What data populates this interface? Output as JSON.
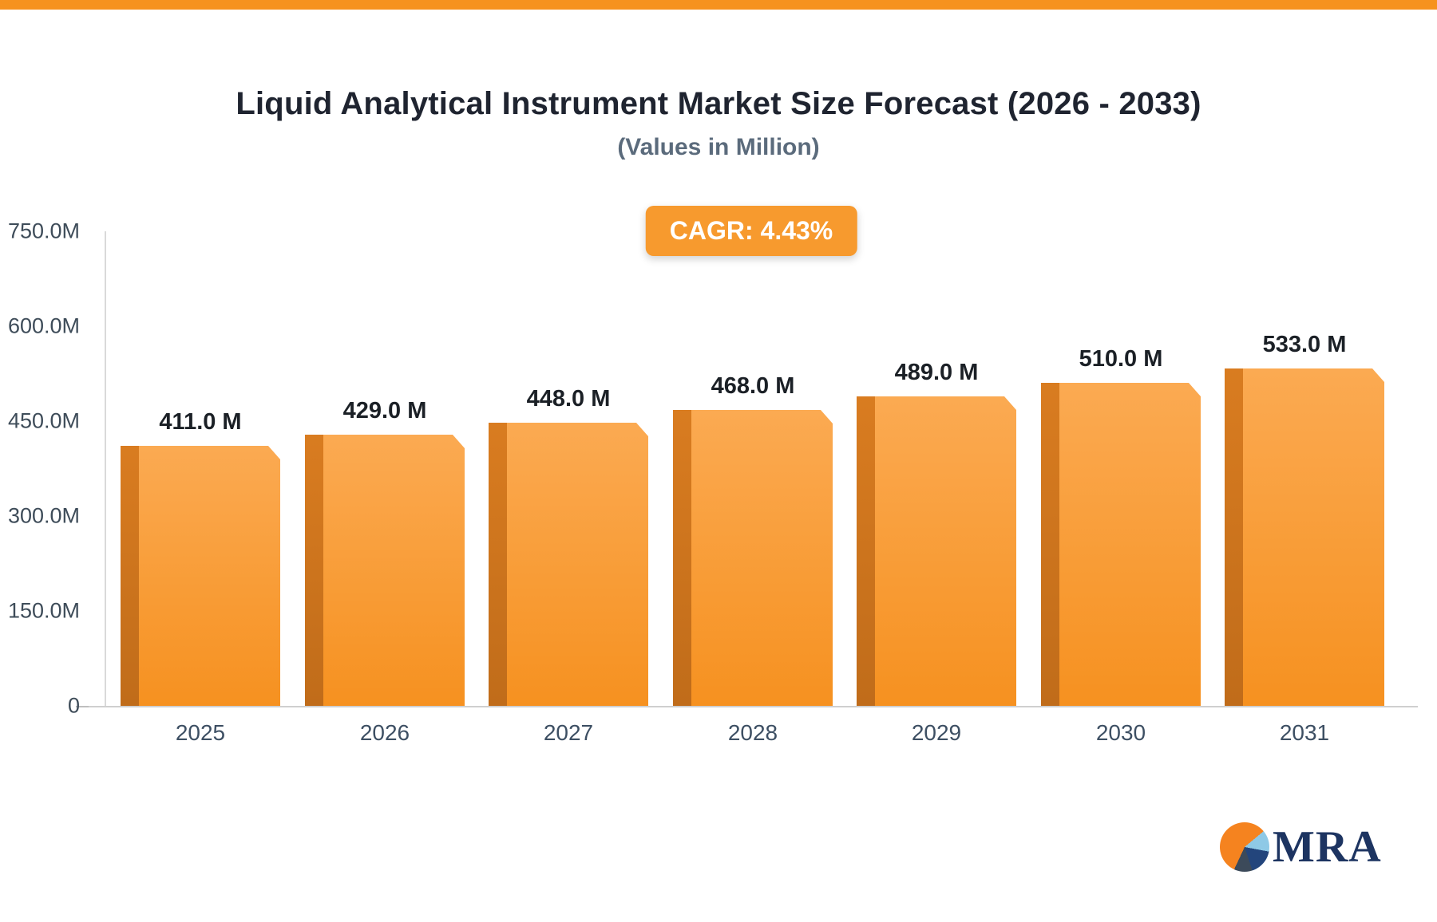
{
  "page": {
    "top_strip_color": "#f6921e"
  },
  "header": {
    "title": "Liquid Analytical Instrument Market Size Forecast (2026 - 2033)",
    "subtitle": "(Values in Million)"
  },
  "badge": {
    "label": "CAGR: 4.43%",
    "color": "#f79a2e"
  },
  "chart_data": {
    "type": "bar",
    "title": "Liquid Analytical Instrument Market Size Forecast (2026 - 2033)",
    "subtitle": "(Values in Million)",
    "categories": [
      "2025",
      "2026",
      "2027",
      "2028",
      "2029",
      "2030",
      "2031"
    ],
    "values": [
      411,
      429,
      448,
      468,
      489,
      510,
      533
    ],
    "value_labels": [
      "411.0 M",
      "429.0 M",
      "448.0 M",
      "468.0 M",
      "489.0 M",
      "510.0 M",
      "533.0 M"
    ],
    "unit": "M",
    "xlabel": "",
    "ylabel": "",
    "ylim": [
      0,
      750
    ],
    "yticks": [
      {
        "label": "750.0M",
        "value": 750
      },
      {
        "label": "600.0M",
        "value": 600
      },
      {
        "label": "450.0M",
        "value": 450
      },
      {
        "label": "300.0M",
        "value": 300
      },
      {
        "label": "150.0M",
        "value": 150
      },
      {
        "label": "0",
        "value": 0
      }
    ],
    "grid": false,
    "legend": false,
    "bar_color_top": "#fbaa52",
    "bar_color_bottom": "#f69120",
    "bar_side_color_top": "#d97c20",
    "bar_side_color_bottom": "#c06c1a"
  },
  "logo": {
    "text": "MRA"
  }
}
